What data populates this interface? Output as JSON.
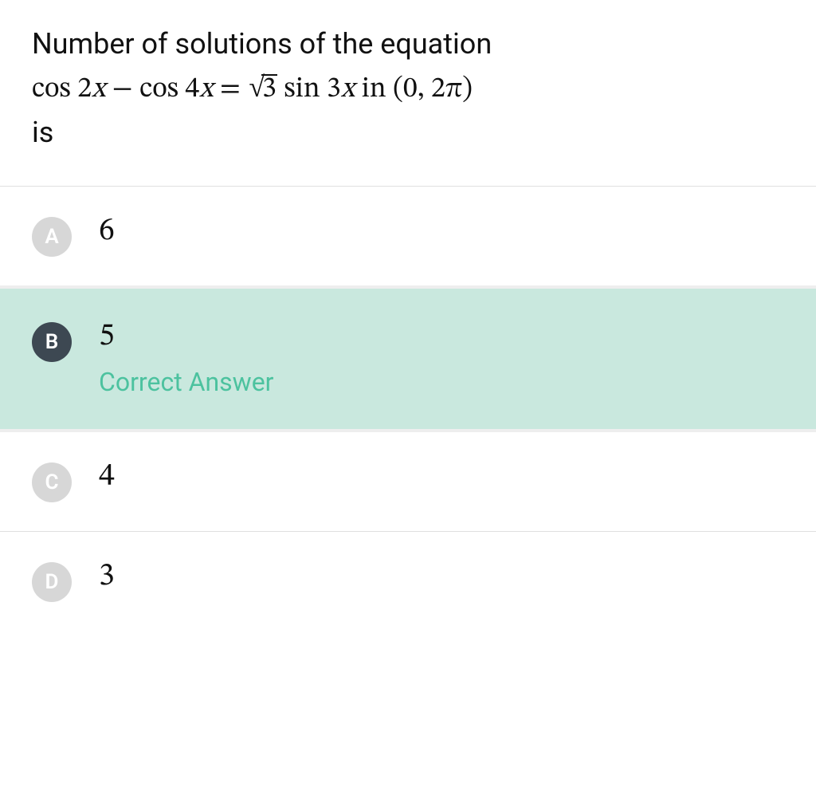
{
  "question": {
    "line1": "Number of solutions of the equation",
    "math_cos2x": "cos 2",
    "math_var_x1": "x",
    "math_minus": " − ",
    "math_cos4x": "cos 4",
    "math_var_x2": "x",
    "math_eq": " = ",
    "math_sqrt_sym": "√",
    "math_sqrt_arg": "3",
    "math_sin3x": " sin 3",
    "math_var_x3": "x",
    "math_in": " in ",
    "math_interval": "(0, 2π)",
    "line3": "is"
  },
  "options": {
    "a": {
      "letter": "A",
      "value": "6"
    },
    "b": {
      "letter": "B",
      "value": "5",
      "caption": "Correct Answer"
    },
    "c": {
      "letter": "C",
      "value": "4"
    },
    "d": {
      "letter": "D",
      "value": "3"
    }
  },
  "colors": {
    "highlight_bg": "#c9e8de",
    "caption_color": "#4cc29f",
    "badge_inactive_bg": "#d7d7d7",
    "badge_correct_bg": "#3d4852",
    "text_color": "#111111",
    "divider_color": "#e0e0e0"
  },
  "typography": {
    "question_fontsize": 36,
    "option_value_fontsize": 40,
    "caption_fontsize": 32,
    "badge_fontsize": 26
  }
}
